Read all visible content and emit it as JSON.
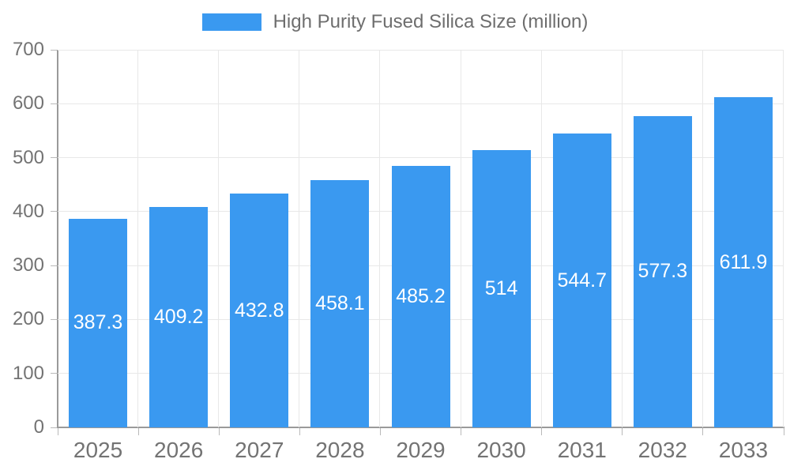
{
  "legend": {
    "label": "High Purity Fused Silica Size (million)"
  },
  "colors": {
    "bar": "#3a99f0",
    "axis_line": "#9a9a9a",
    "tick_mark": "#b9b9b9",
    "grid_line": "#e8e8e8",
    "tick_text": "#737373",
    "legend_text": "#6e6e6e",
    "bar_label_text": "#ffffff",
    "background": "#ffffff"
  },
  "chart_data": {
    "type": "bar",
    "title": "",
    "xlabel": "",
    "ylabel": "",
    "categories": [
      "2025",
      "2026",
      "2027",
      "2028",
      "2029",
      "2030",
      "2031",
      "2032",
      "2033"
    ],
    "values": [
      387.3,
      409.2,
      432.8,
      458.1,
      485.2,
      514,
      544.7,
      577.3,
      611.9
    ],
    "bar_labels": [
      "387.3",
      "409.2",
      "432.8",
      "458.1",
      "485.2",
      "514",
      "544.7",
      "577.3",
      "611.9"
    ],
    "series_name": "High Purity Fused Silica Size (million)",
    "ylim": [
      0,
      700
    ],
    "yticks": [
      0,
      100,
      200,
      300,
      400,
      500,
      600,
      700
    ],
    "grid": true,
    "legend_position": "top-center",
    "bar_label_position": "inside-center"
  }
}
